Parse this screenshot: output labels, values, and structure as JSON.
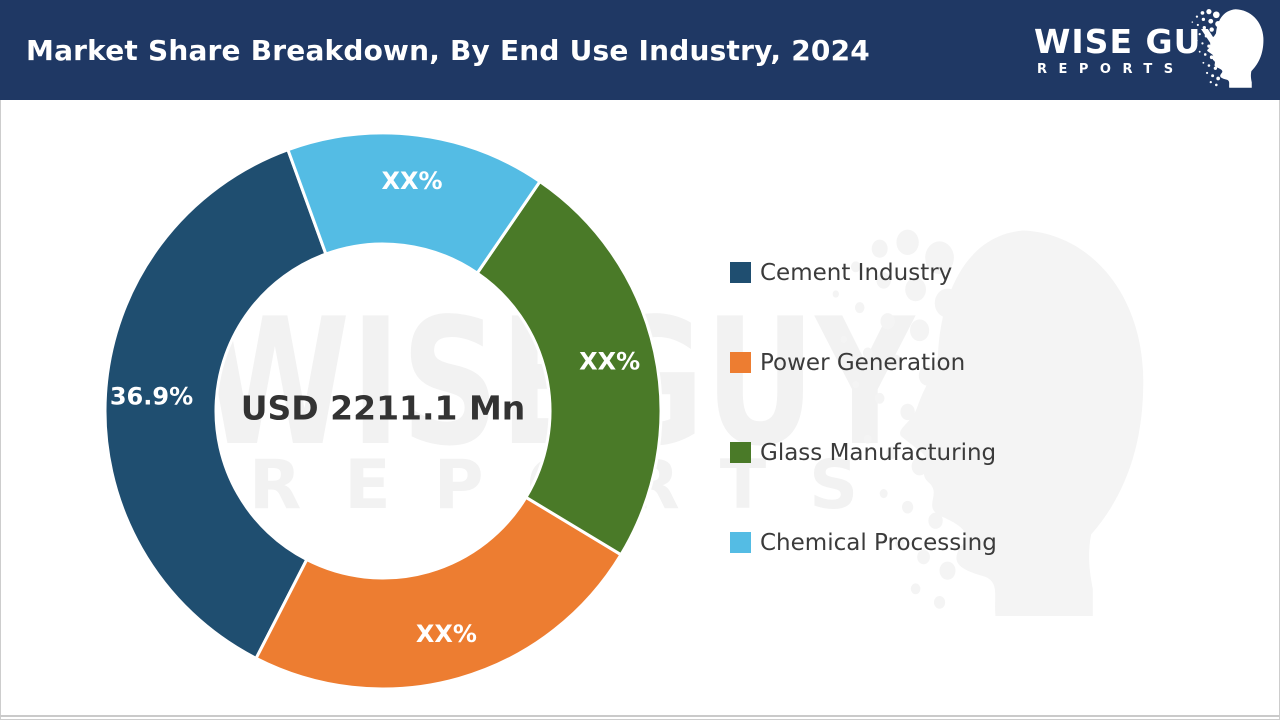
{
  "header": {
    "title": "Market Share Breakdown, By End Use Industry, 2024",
    "bg_color": "#1F3864",
    "logo": {
      "line1": "WISE GUY",
      "line2": "REPORTS"
    }
  },
  "watermark": {
    "line1": "WISEGUY",
    "line2": "REPORTS"
  },
  "chart_data": {
    "type": "pie",
    "subtype": "donut",
    "title": "Market Share Breakdown, By End Use Industry, 2024",
    "center_label": "USD 2211.1 Mn",
    "start_angle_deg": 110,
    "direction": "counterclockwise",
    "legend_position": "right",
    "segments": [
      {
        "name": "Cement Industry",
        "label": "36.9%",
        "value_pct": 36.9,
        "color": "#1F4E70"
      },
      {
        "name": "Power Generation",
        "label": "XX%",
        "value_pct": 23.9,
        "color": "#ED7D31"
      },
      {
        "name": "Glass Manufacturing",
        "label": "XX%",
        "value_pct": 24.1,
        "color": "#4A7A28"
      },
      {
        "name": "Chemical Processing",
        "label": "XX%",
        "value_pct": 15.1,
        "color": "#54BCE4"
      }
    ]
  }
}
